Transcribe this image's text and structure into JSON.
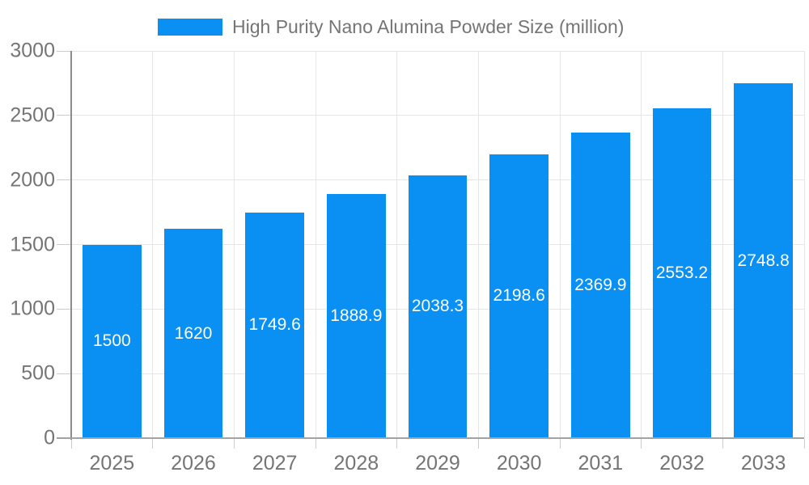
{
  "legend": {
    "label": "High Purity Nano Alumina Powder Size (million)"
  },
  "chart_data": {
    "type": "bar",
    "title": "High Purity Nano Alumina Powder Size (million)",
    "categories": [
      "2025",
      "2026",
      "2027",
      "2028",
      "2029",
      "2030",
      "2031",
      "2032",
      "2033"
    ],
    "values": [
      1500,
      1620,
      1749.6,
      1888.9,
      2038.3,
      2198.6,
      2369.9,
      2553.2,
      2748.8
    ],
    "value_labels": [
      "1500",
      "1620",
      "1749.6",
      "1888.9",
      "2038.3",
      "2198.6",
      "2369.9",
      "2553.2",
      "2748.8"
    ],
    "xlabel": "",
    "ylabel": "",
    "ylim": [
      0,
      3000
    ],
    "y_ticks": [
      0,
      500,
      1000,
      1500,
      2000,
      2500,
      3000
    ],
    "y_tick_labels": [
      "0",
      "500",
      "1000",
      "1500",
      "2000",
      "2500",
      "3000"
    ],
    "grid": true,
    "legend_position": "top",
    "colors": {
      "bar": "#0990F2",
      "value_label": "#FFFFFF",
      "axis_text": "#757575",
      "legend_text": "#757575",
      "gridline": "#E6E6E6",
      "tick": "#CCCCCC",
      "y_axis_line": "#8C8C8C",
      "x_axis_line": "#A3A3A3"
    }
  }
}
